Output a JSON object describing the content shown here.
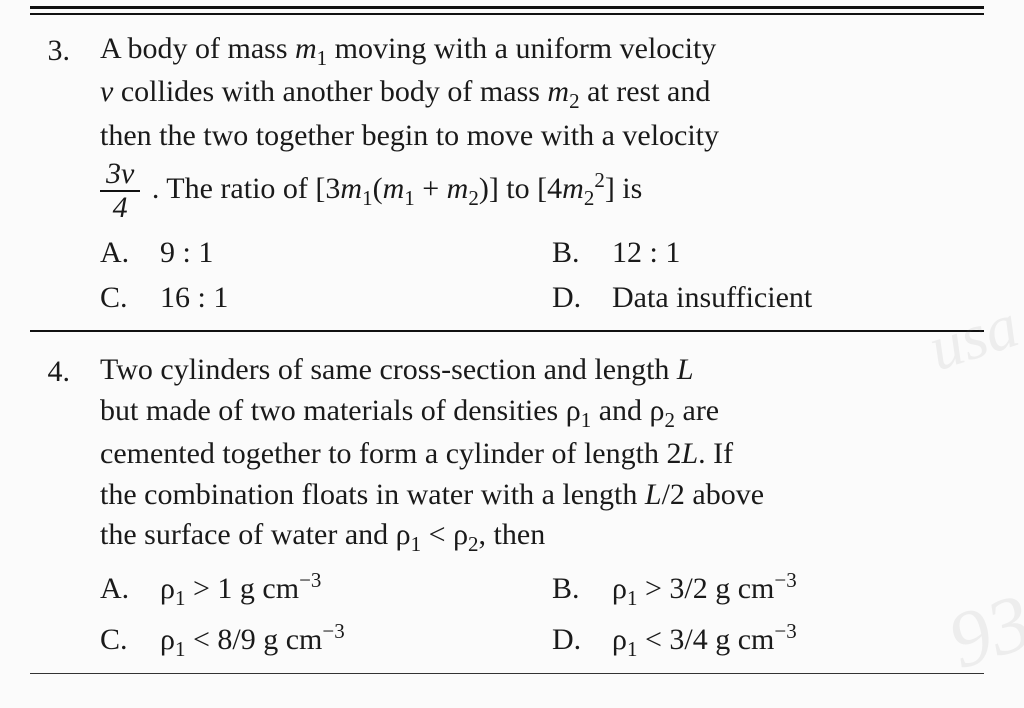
{
  "page": {
    "background_color": "#fbfbfb",
    "text_color": "#1a1a1a",
    "rule_color": "#111111",
    "font_family": "Times New Roman",
    "base_fontsize_pt": 22
  },
  "watermarks": {
    "text1": "usa",
    "text2": "93"
  },
  "q3": {
    "number": "3.",
    "stem_line1": "A body of mass m₁ moving with a uniform velocity",
    "stem_line2": "v collides with another body of mass m₂ at rest and",
    "stem_line3": "then the two together begin to move with a velocity",
    "frac_num": "3v",
    "frac_den": "4",
    "after_frac": ". The ratio of [3m₁(m₁ + m₂)] to [4m₂²] is",
    "options": {
      "A": {
        "label": "A.",
        "text": "9 : 1"
      },
      "B": {
        "label": "B.",
        "text": "12 : 1"
      },
      "C": {
        "label": "C.",
        "text": "16 : 1"
      },
      "D": {
        "label": "D.",
        "text": "Data insufficient"
      }
    }
  },
  "q4": {
    "number": "4.",
    "stem_line1": "Two cylinders of same cross-section and length L",
    "stem_line2": "but made of two materials of densities ρ₁ and ρ₂ are",
    "stem_line3": "cemented together to form a cylinder of length 2L. If",
    "stem_line4": "the combination floats in water with a length L/2 above",
    "stem_line5": "the surface of water and ρ₁ < ρ₂, then",
    "options": {
      "A": {
        "label": "A.",
        "text": "ρ₁ > 1 g cm⁻³"
      },
      "B": {
        "label": "B.",
        "text": "ρ₁ > 3/2 g cm⁻³"
      },
      "C": {
        "label": "C.",
        "text": "ρ₁ < 8/9 g cm⁻³"
      },
      "D": {
        "label": "D.",
        "text": "ρ₁ < 3/4 g cm⁻³"
      }
    }
  }
}
